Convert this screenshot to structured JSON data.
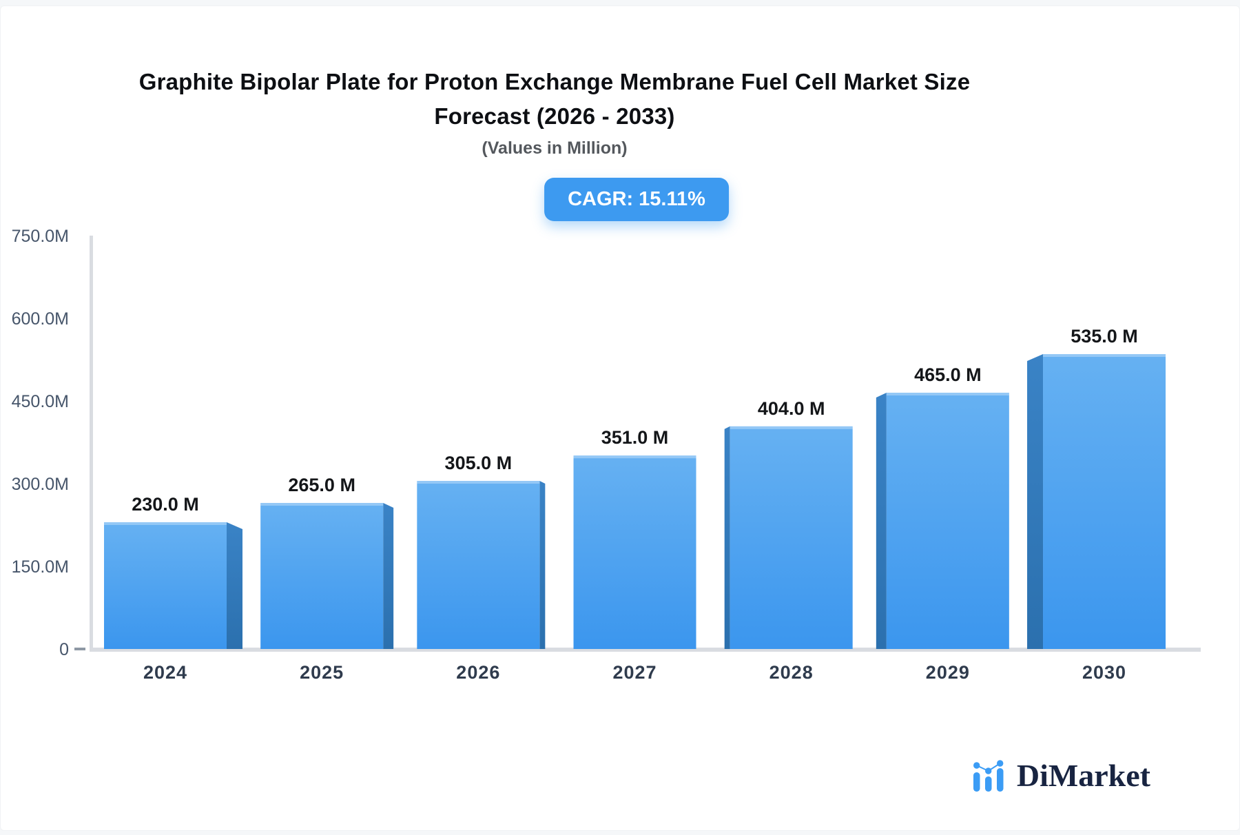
{
  "header": {
    "title_line1": "Graphite Bipolar Plate for Proton Exchange Membrane Fuel Cell Market Size",
    "title_line2": "Forecast (2026 - 2033)"
  },
  "chart_data": {
    "type": "bar",
    "title": "Graphite Bipolar Plate for Proton Exchange Membrane Fuel Cell Market Size Forecast (2026 - 2033)",
    "subtitle": "(Values in Million)",
    "cagr_text": "CAGR: 15.11%",
    "unit": "Million USD",
    "categories": [
      "2024",
      "2025",
      "2026",
      "2027",
      "2028",
      "2029",
      "2030"
    ],
    "values": [
      230,
      265,
      305,
      351,
      404,
      465,
      535
    ],
    "value_labels": [
      "230.0 M",
      "265.0 M",
      "305.0 M",
      "351.0 M",
      "404.0 M",
      "465.0 M",
      "535.0 M"
    ],
    "ytick_values": [
      750,
      600,
      450,
      300,
      150,
      0
    ],
    "ytick_labels": [
      "750.0M",
      "600.0M",
      "450.0M",
      "300.0M",
      "150.0M",
      "0"
    ],
    "ylim": [
      0,
      750
    ],
    "grid": "off",
    "legend": "none",
    "colors": {
      "bar_face_top": "#66B1F2",
      "bar_face_bottom": "#3B96EE",
      "bar_side_top": "#3A83C6",
      "bar_side_bottom": "#2B70AE",
      "axis_line": "#D9DCE1",
      "tick_dash": "#8E98A4",
      "ytick_text": "#46556A",
      "xtick_text": "#2F3B4D",
      "value_label_text": "#141619",
      "accent": "#3D9AF0"
    }
  },
  "footer": {
    "brand": "DiMarket",
    "brand_icon": "bar-chart-logo-icon",
    "brand_color": "#3B9CF5"
  }
}
